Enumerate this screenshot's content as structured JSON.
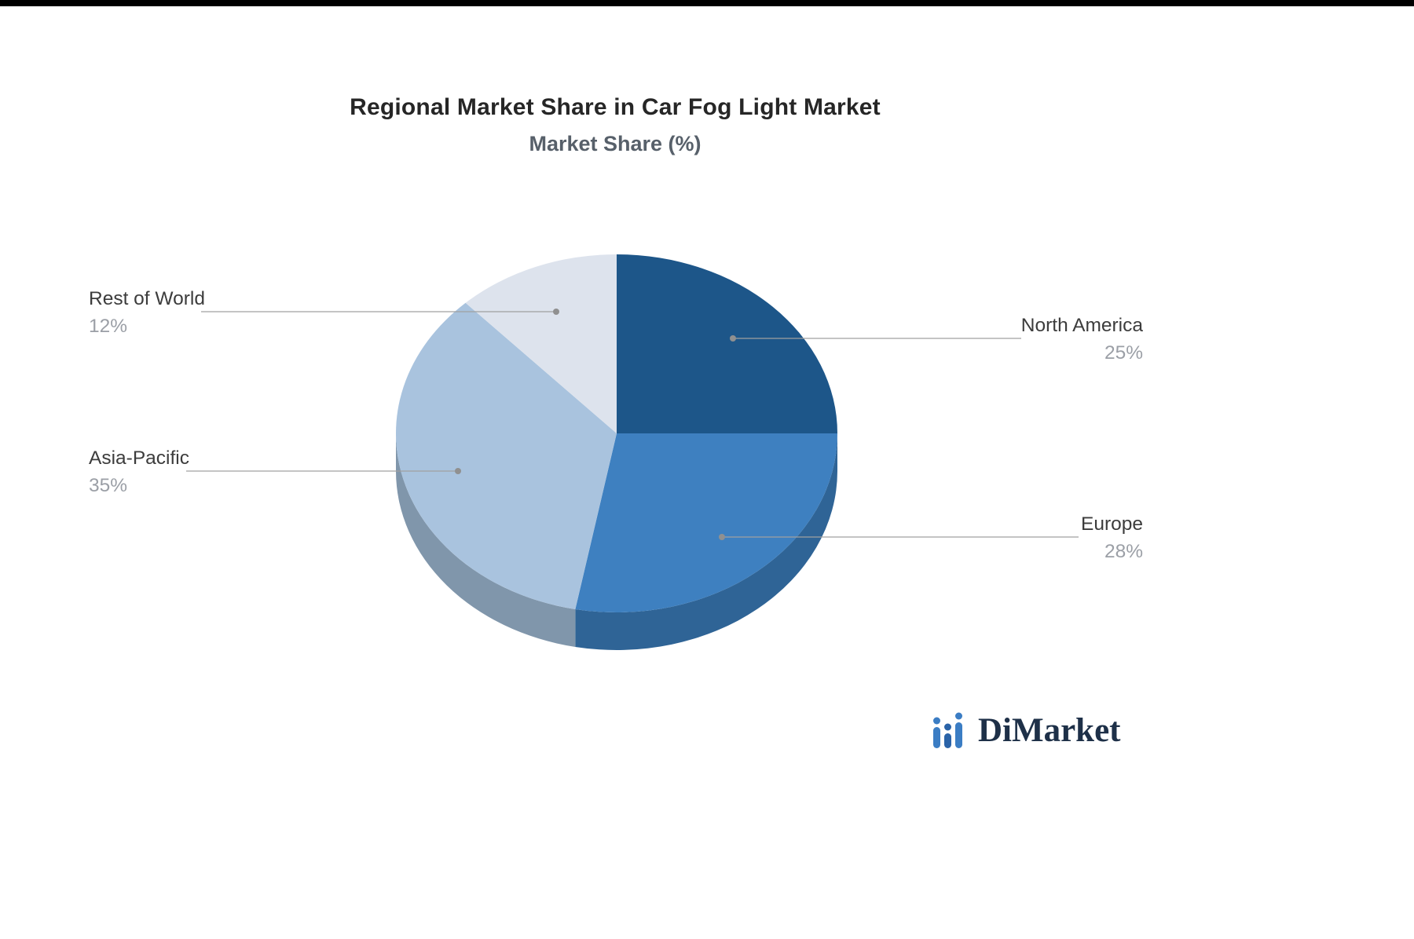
{
  "page": {
    "background_color": "#ffffff",
    "top_edge_color": "#000000"
  },
  "chart_data": {
    "type": "pie",
    "title": "Regional Market Share in Car Fog Light Market",
    "subtitle": "Market Share (%)",
    "unit": "%",
    "direction": "clockwise",
    "start_angle_deg": 0,
    "legend_position": "none",
    "labels": "outside-with-leader-lines",
    "effect": "3d-depth",
    "slices": [
      {
        "label": "North America",
        "value": 25,
        "value_label": "25%",
        "color": "#1d5689",
        "side_color": "#17446c"
      },
      {
        "label": "Europe",
        "value": 28,
        "value_label": "28%",
        "color": "#3e80c0",
        "side_color": "#2f6496"
      },
      {
        "label": "Asia-Pacific",
        "value": 35,
        "value_label": "35%",
        "color": "#a9c3de",
        "side_color": "#8096ab"
      },
      {
        "label": "Rest of World",
        "value": 12,
        "value_label": "12%",
        "color": "#dde3ed",
        "side_color": "#b7c0cc"
      }
    ],
    "callout_style": {
      "leader_line_color": "#a0a0a0",
      "dot_color": "#909090",
      "label_color": "#3c3c3c",
      "value_color": "#9b9fa6"
    }
  },
  "branding": {
    "logo_text": "DiMarket",
    "logo_icon": "bar-chart-icon",
    "logo_text_color": "#1e3048",
    "logo_icon_color": "#3b7dc4"
  }
}
